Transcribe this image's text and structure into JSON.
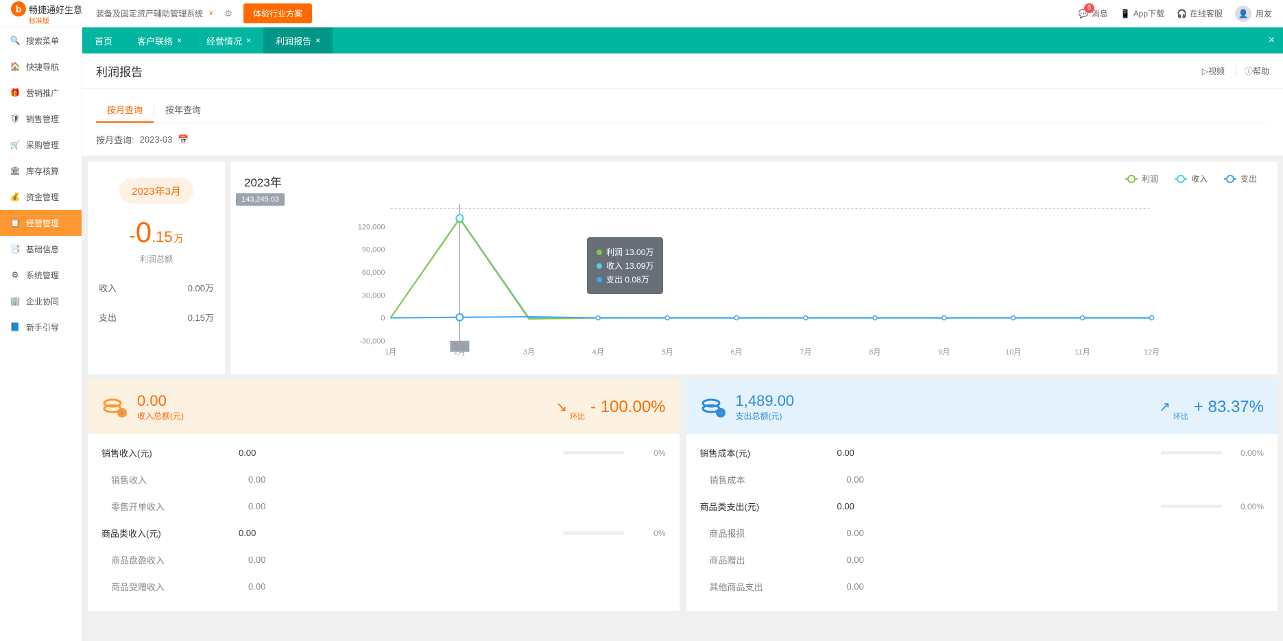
{
  "header": {
    "logo_text": "畅捷通好生意",
    "logo_sub": "标准版",
    "system_name": "装备及固定资产辅助管理系统",
    "btn_experience": "体验行业方案",
    "msg": "消息",
    "msg_badge": "6",
    "app_download": "App下载",
    "online_service": "在线客服",
    "user": "用友"
  },
  "tabs": {
    "home": "首页",
    "customer": "客户联络",
    "business": "经营情况",
    "profit": "利润报告"
  },
  "sidebar": {
    "items": [
      "搜索菜单",
      "快捷导航",
      "营销推广",
      "销售管理",
      "采购管理",
      "库存核算",
      "资金管理",
      "经营管理",
      "基础信息",
      "系统管理",
      "企业协同",
      "新手引导"
    ],
    "active_index": 7
  },
  "page": {
    "title": "利润报告",
    "video": "视频",
    "help": "帮助",
    "subtabs": {
      "month": "按月查询",
      "year": "按年查询"
    },
    "filter_label": "按月查询:",
    "filter_date": "2023-03"
  },
  "summary": {
    "date_badge": "2023年3月",
    "profit_sign": "-",
    "profit_int": "0",
    "profit_dec": ".15",
    "profit_unit": "万",
    "profit_label": "利润总额",
    "income_label": "收入",
    "income_value": "0.00万",
    "expense_label": "支出",
    "expense_value": "0.15万"
  },
  "chart": {
    "title": "2023年",
    "legend": {
      "profit": "利润",
      "income": "收入",
      "expense": "支出"
    },
    "colors": {
      "profit": "#8cc63f",
      "income": "#4dd0e1",
      "expense": "#42a5f5",
      "grid": "#e0e0e0",
      "axis_text": "#999999",
      "highlight_month": "#ff4d4f"
    },
    "y_ticks": [
      -30000,
      0,
      30000,
      60000,
      90000,
      120000
    ],
    "ylim": [
      -30000,
      150000
    ],
    "peak_label": "143,245.03",
    "months": [
      "1月",
      "2月",
      "3月",
      "4月",
      "5月",
      "6月",
      "7月",
      "8月",
      "9月",
      "10月",
      "11月",
      "12月"
    ],
    "current_month_index": 2,
    "highlight_x_index": 1,
    "series": {
      "profit": [
        0,
        130000,
        -1500,
        0,
        0,
        0,
        0,
        0,
        0,
        0,
        0,
        0
      ],
      "income": [
        0,
        130900,
        0,
        0,
        0,
        0,
        0,
        0,
        0,
        0,
        0,
        0
      ],
      "expense": [
        0,
        800,
        1500,
        0,
        0,
        0,
        0,
        0,
        0,
        0,
        0,
        0
      ]
    },
    "tooltip": {
      "rows": [
        {
          "color": "#8cc63f",
          "label": "利润",
          "value": "13.00万"
        },
        {
          "color": "#4dd0e1",
          "label": "收入",
          "value": "13.09万"
        },
        {
          "color": "#42a5f5",
          "label": "支出",
          "value": "0.08万"
        }
      ]
    }
  },
  "income_card": {
    "value": "0.00",
    "label": "收入总额(元)",
    "sub": "环比",
    "change": "- 100.00%",
    "rows": [
      {
        "label": "销售收入(元)",
        "value": "0.00",
        "pct": "0%",
        "sub": false
      },
      {
        "label": "销售收入",
        "value": "0.00",
        "pct": "",
        "sub": true
      },
      {
        "label": "零售开单收入",
        "value": "0.00",
        "pct": "",
        "sub": true
      },
      {
        "label": "商品类收入(元)",
        "value": "0.00",
        "pct": "0%",
        "sub": false
      },
      {
        "label": "商品盘盈收入",
        "value": "0.00",
        "pct": "",
        "sub": true
      },
      {
        "label": "商品受赠收入",
        "value": "0.00",
        "pct": "",
        "sub": true
      }
    ]
  },
  "expense_card": {
    "value": "1,489.00",
    "label": "支出总额(元)",
    "sub": "环比",
    "change": "+ 83.37%",
    "rows": [
      {
        "label": "销售成本(元)",
        "value": "0.00",
        "pct": "0.00%",
        "sub": false
      },
      {
        "label": "销售成本",
        "value": "0.00",
        "pct": "",
        "sub": true
      },
      {
        "label": "商品类支出(元)",
        "value": "0.00",
        "pct": "0.00%",
        "sub": false
      },
      {
        "label": "商品报损",
        "value": "0.00",
        "pct": "",
        "sub": true
      },
      {
        "label": "商品赠出",
        "value": "0.00",
        "pct": "",
        "sub": true
      },
      {
        "label": "其他商品支出",
        "value": "0.00",
        "pct": "",
        "sub": true
      }
    ]
  }
}
